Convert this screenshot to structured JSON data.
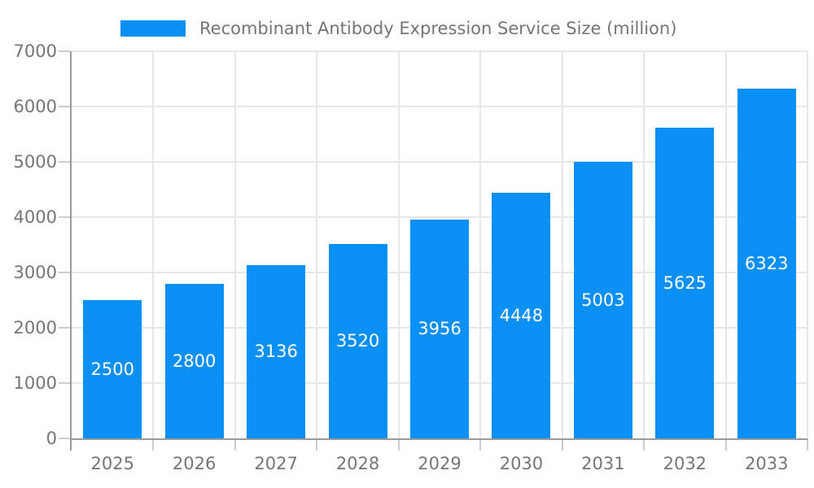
{
  "chart_data": {
    "type": "bar",
    "title": "Recombinant Antibody Expression Service Size (million)",
    "categories": [
      "2025",
      "2026",
      "2027",
      "2028",
      "2029",
      "2030",
      "2031",
      "2032",
      "2033"
    ],
    "values": [
      2500,
      2800,
      3136,
      3520,
      3956,
      4448,
      5003,
      5625,
      6323
    ],
    "xlabel": "",
    "ylabel": "",
    "ylim": [
      0,
      7000
    ],
    "ytick_step": 1000,
    "ytick_labels": [
      "0",
      "1000",
      "2000",
      "3000",
      "4000",
      "5000",
      "6000",
      "7000"
    ],
    "grid": true,
    "legend_position": "top",
    "bar_labels_inside": true
  },
  "legend": {
    "label": "Recombinant Antibody Expression Service Size (million)"
  },
  "colors": {
    "bar": "#0a90f5",
    "bar_label_text": "#ffffff",
    "grid": "#e7e7e7",
    "axis": "#9b9b9b",
    "tick": "#cccccc",
    "label_text": "#757575",
    "background": "#ffffff"
  }
}
